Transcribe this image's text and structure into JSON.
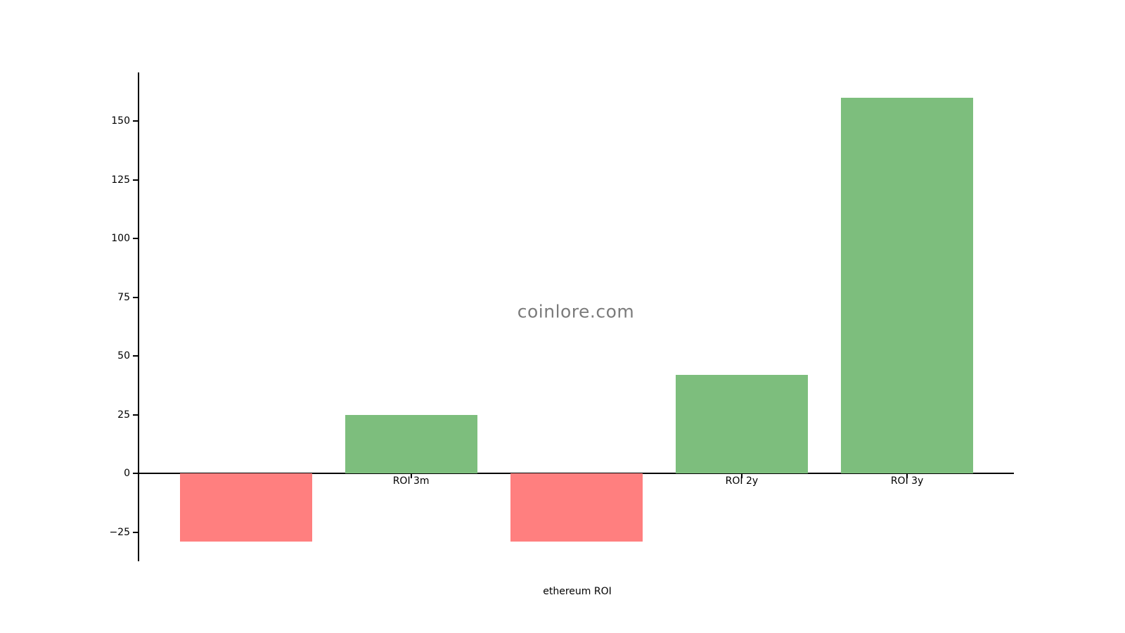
{
  "figure": {
    "watermark": "coinlore.com",
    "watermark_color": "#7b7b7b",
    "axis_color": "#000000",
    "background": "#ffffff"
  },
  "chart_data": {
    "type": "bar",
    "title": "",
    "xlabel": "ethereum ROI",
    "ylabel": "",
    "categories": [
      "",
      "ROI 3m",
      "",
      "ROI 2y",
      "ROI 3y"
    ],
    "values": [
      -29,
      25,
      -29,
      42,
      160
    ],
    "positive_color": "#7dbe7d",
    "negative_color": "#ff7f7f",
    "yticks": [
      -25,
      0,
      25,
      50,
      75,
      100,
      125,
      150
    ],
    "ylim": [
      -37.5,
      170.5
    ],
    "grid": false,
    "legend_position": "none"
  }
}
